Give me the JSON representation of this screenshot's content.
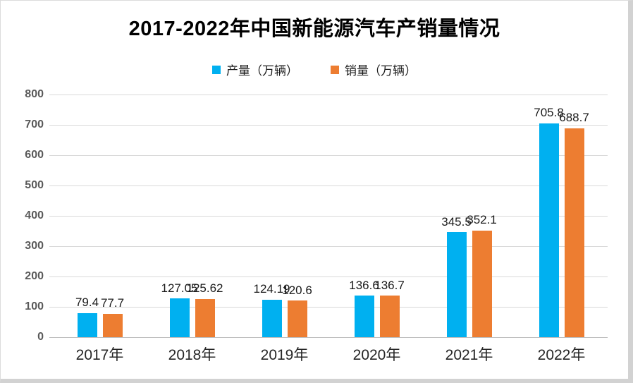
{
  "page": {
    "background": "#ffffff",
    "frame_border_color": "#d2d2d2"
  },
  "chart_data": {
    "type": "bar",
    "title": "2017-2022年中国新能源汽车产销量情况",
    "categories": [
      "2017年",
      "2018年",
      "2019年",
      "2020年",
      "2021年",
      "2022年"
    ],
    "series": [
      {
        "key": "production",
        "name": "产量（万辆）",
        "color": "#00B0F0",
        "values": [
          79.4,
          127.05,
          124.19,
          136.6,
          345.5,
          705.8
        ]
      },
      {
        "key": "sales",
        "name": "销量（万辆）",
        "color": "#ED7D31",
        "values": [
          77.7,
          125.62,
          120.6,
          136.7,
          352.1,
          688.7
        ]
      }
    ],
    "ylim": [
      0,
      800
    ],
    "yticks": [
      0,
      100,
      200,
      300,
      400,
      500,
      600,
      700,
      800
    ],
    "grid": true,
    "legend_position": "top",
    "xlabel": "",
    "ylabel": "",
    "colors": {
      "grid": "#d9d9d9",
      "axis_line": "#bfbfbf",
      "ytick_label": "#595959",
      "xtick_label": "#262626",
      "value_label": "#1a1a1a",
      "title": "#000000"
    }
  }
}
